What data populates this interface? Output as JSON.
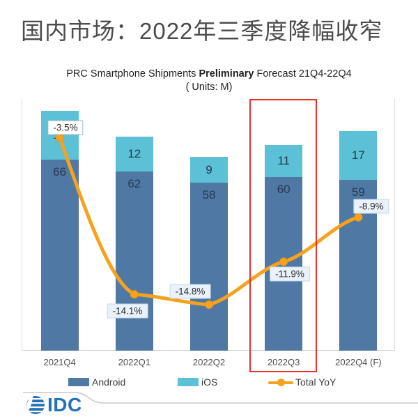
{
  "page": {
    "title": "国内市场：2022年三季度降幅收窄"
  },
  "chart": {
    "title_prefix": "PRC Smartphone Shipments ",
    "title_bold": "Preliminary",
    "title_suffix": " Forecast 21Q4-22Q4",
    "subtitle": "( Units: M)"
  },
  "chart_data": {
    "type": "bar",
    "subtype": "stacked-bars-with-line",
    "categories": [
      "2021Q4",
      "2022Q1",
      "2022Q2",
      "2022Q3",
      "2022Q4 (F)"
    ],
    "series": [
      {
        "name": "Android",
        "type": "bar",
        "values": [
          66,
          62,
          58,
          60,
          59
        ]
      },
      {
        "name": "iOS",
        "type": "bar",
        "values": [
          17,
          12,
          9,
          11,
          17
        ]
      },
      {
        "name": "Total YoY",
        "type": "line",
        "values": [
          -3.5,
          -14.1,
          -14.8,
          -11.9,
          -8.9
        ],
        "labels": [
          "-3.5%",
          "-14.1%",
          "-14.8%",
          "-11.9%",
          "-8.9%"
        ]
      }
    ],
    "title": "PRC Smartphone Shipments Preliminary Forecast 21Q4-22Q4",
    "units_note": "( Units: M)",
    "ylabel": "",
    "xlabel": "",
    "legend_position": "bottom",
    "grid": false,
    "highlighted_category": "2022Q3",
    "colors": {
      "android": "#4f78a4",
      "ios": "#5cc1d6",
      "yoy_line": "#f6a21e",
      "highlight": "#e5322c",
      "label_box_bg": "#e9f1fa"
    }
  },
  "legend": {
    "android": "Android",
    "ios": "iOS",
    "yoy": "Total YoY"
  },
  "footer": {
    "logo_text": "IDC"
  }
}
